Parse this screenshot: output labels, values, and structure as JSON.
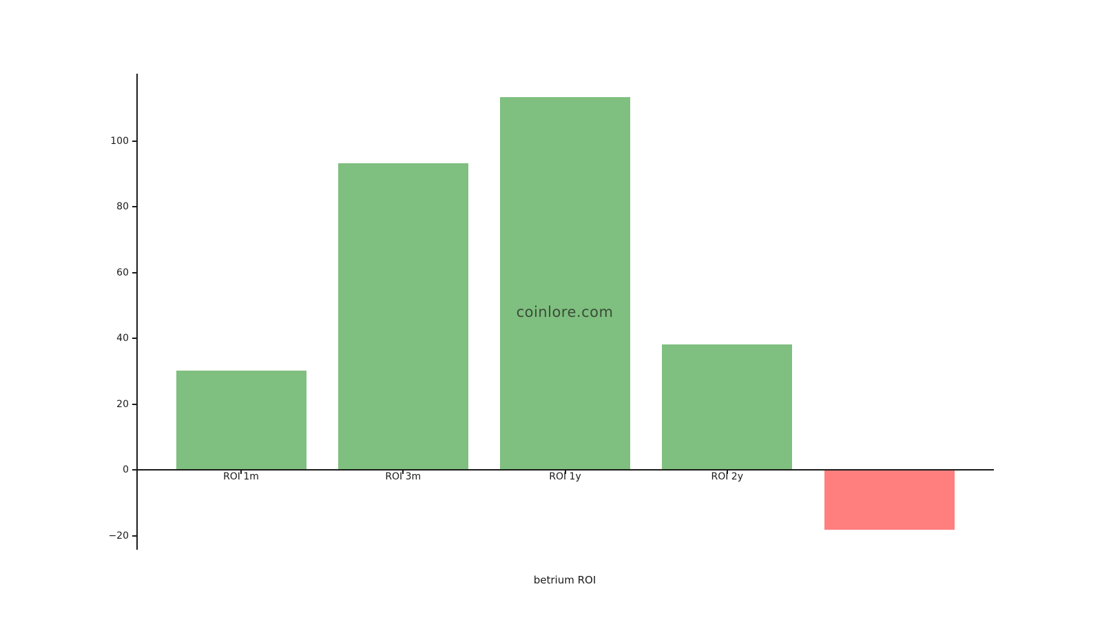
{
  "page": {
    "background_color": "#ffffff"
  },
  "chart_data": {
    "type": "bar",
    "title": "",
    "xlabel": "betrium ROI",
    "ylabel": "",
    "categories": [
      "ROI 1m",
      "ROI 3m",
      "ROI 1y",
      "ROI 2y",
      ""
    ],
    "values": [
      30,
      93,
      113,
      38,
      -18
    ],
    "bar_colors": [
      "#7fbf7f",
      "#7fbf7f",
      "#7fbf7f",
      "#7fbf7f",
      "#ff7f7f"
    ],
    "positive_color": "#7fbf7f",
    "negative_color": "#ff7f7f",
    "yticks": [
      {
        "value": -20,
        "label": "−20"
      },
      {
        "value": 0,
        "label": "0"
      },
      {
        "value": 20,
        "label": "20"
      },
      {
        "value": 40,
        "label": "40"
      },
      {
        "value": 60,
        "label": "60"
      },
      {
        "value": 80,
        "label": "80"
      },
      {
        "value": 100,
        "label": "100"
      }
    ],
    "ylim": [
      -24,
      120
    ],
    "grid": false,
    "legend": null,
    "watermark": "coinlore.com",
    "axis_color": "#1a1a1a"
  }
}
